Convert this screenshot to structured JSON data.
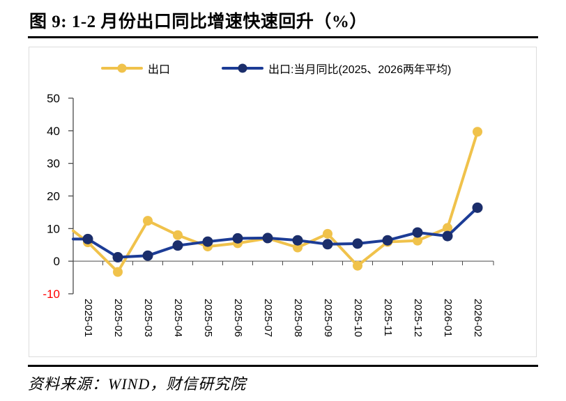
{
  "page": {
    "title": "图 9:  1-2 月份出口同比增速快速回升（%）",
    "source": "资料来源：WIND，财信研究院"
  },
  "chart_data": {
    "type": "line",
    "title": "图 9: 1-2 月份出口同比增速快速回升（%）",
    "xlabel": "",
    "ylabel": "",
    "ylim": [
      -10,
      50
    ],
    "yticks": [
      50,
      40,
      30,
      20,
      10,
      0,
      -10
    ],
    "negative_tick_color": "#FF0000",
    "grid": false,
    "legend_position": "top",
    "categories": [
      "2025-01",
      "2025-02",
      "2025-03",
      "2025-04",
      "2025-05",
      "2025-06",
      "2025-07",
      "2025-08",
      "2025-09",
      "2025-10",
      "2025-11",
      "2025-12",
      "2026-01",
      "2026-02"
    ],
    "series": [
      {
        "id": "export",
        "name": "出口",
        "color": "#F0C24B",
        "marker_color": "#F0C24B",
        "edge_start_value": 9.3,
        "values": [
          5.8,
          -3.3,
          12.4,
          8.0,
          4.5,
          5.5,
          7.0,
          4.2,
          8.4,
          -1.4,
          5.9,
          6.3,
          10.2,
          39.7
        ]
      },
      {
        "id": "export-two-year-avg",
        "name": "出口:当月同比(2025、2026两年平均)",
        "color": "#1C3C96",
        "marker_color": "#1B2E6B",
        "edge_start_value": 6.8,
        "values": [
          6.8,
          1.2,
          1.7,
          4.8,
          6.0,
          7.0,
          7.1,
          6.4,
          5.2,
          5.4,
          6.4,
          8.8,
          7.7,
          16.4
        ]
      }
    ]
  }
}
